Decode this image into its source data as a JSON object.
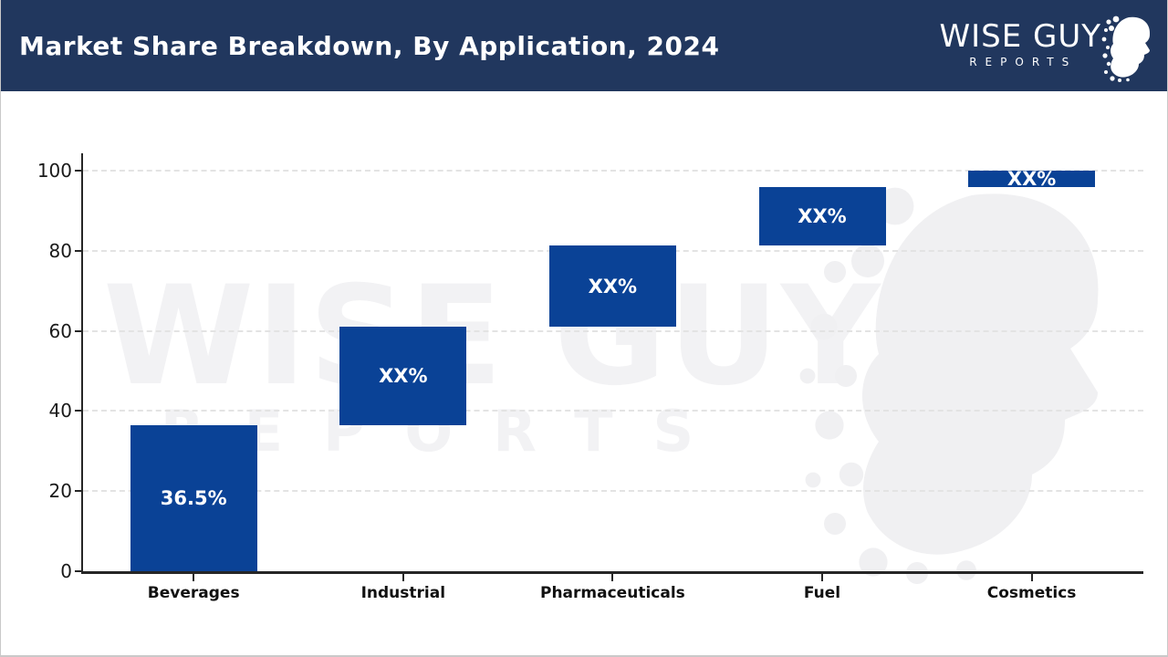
{
  "header": {
    "title": "Market Share Breakdown, By Application, 2024",
    "bg_color": "#21375e",
    "logo": {
      "line1": "WISE GUY",
      "line2": "REPORTS"
    }
  },
  "watermark": {
    "line1": "WISE GUY",
    "line2": "REPORTS"
  },
  "chart_data": {
    "type": "bar",
    "subtype": "waterfall",
    "title": "Market Share Breakdown, By Application, 2024",
    "categories": [
      "Beverages",
      "Industrial",
      "Pharmaceuticals",
      "Fuel",
      "Cosmetics"
    ],
    "segments": [
      {
        "category": "Beverages",
        "start": 0,
        "end": 36.5,
        "label": "36.5%"
      },
      {
        "category": "Industrial",
        "start": 36.5,
        "end": 61.0,
        "label": "XX%"
      },
      {
        "category": "Pharmaceuticals",
        "start": 61.0,
        "end": 81.3,
        "label": "XX%"
      },
      {
        "category": "Fuel",
        "start": 81.3,
        "end": 95.8,
        "label": "XX%"
      },
      {
        "category": "Cosmetics",
        "start": 95.8,
        "end": 100.0,
        "label": "XX%"
      }
    ],
    "y_ticks": [
      0,
      20,
      40,
      60,
      80,
      100
    ],
    "ylim": [
      0,
      105
    ],
    "xlabel": "",
    "ylabel": "",
    "legend": "none",
    "grid": "horizontal-dashed",
    "bar_color": "#0a4296",
    "axis_color": "#262626",
    "gridline_color": "#e3e3e3"
  }
}
